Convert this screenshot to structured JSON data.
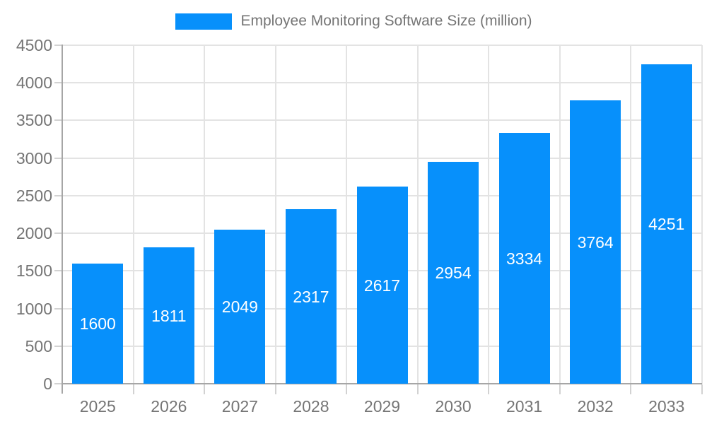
{
  "legend": {
    "label": "Employee Monitoring Software Size (million)"
  },
  "colors": {
    "bar": "#0790fb",
    "bar_label_text": "#ffffff",
    "axis_text": "#757575",
    "gridline": "#e3e3e3",
    "axis_line": "#a6a6a6",
    "tick": "#d2d2d2",
    "background": "#ffffff"
  },
  "chart_data": {
    "type": "bar",
    "title": "Employee Monitoring Software Size (million)",
    "series_name": "Employee Monitoring Software Size (million)",
    "categories": [
      "2025",
      "2026",
      "2027",
      "2028",
      "2029",
      "2030",
      "2031",
      "2032",
      "2033"
    ],
    "values": [
      1600,
      1811,
      2049,
      2317,
      2617,
      2954,
      3334,
      3764,
      4251
    ],
    "xlabel": "",
    "ylabel": "",
    "ylim": [
      0,
      4500
    ],
    "ytick_step": 500,
    "yticks": [
      0,
      500,
      1000,
      1500,
      2000,
      2500,
      3000,
      3500,
      4000,
      4500
    ],
    "grid": true,
    "legend_position": "top",
    "bar_labels": "inside-centered"
  }
}
